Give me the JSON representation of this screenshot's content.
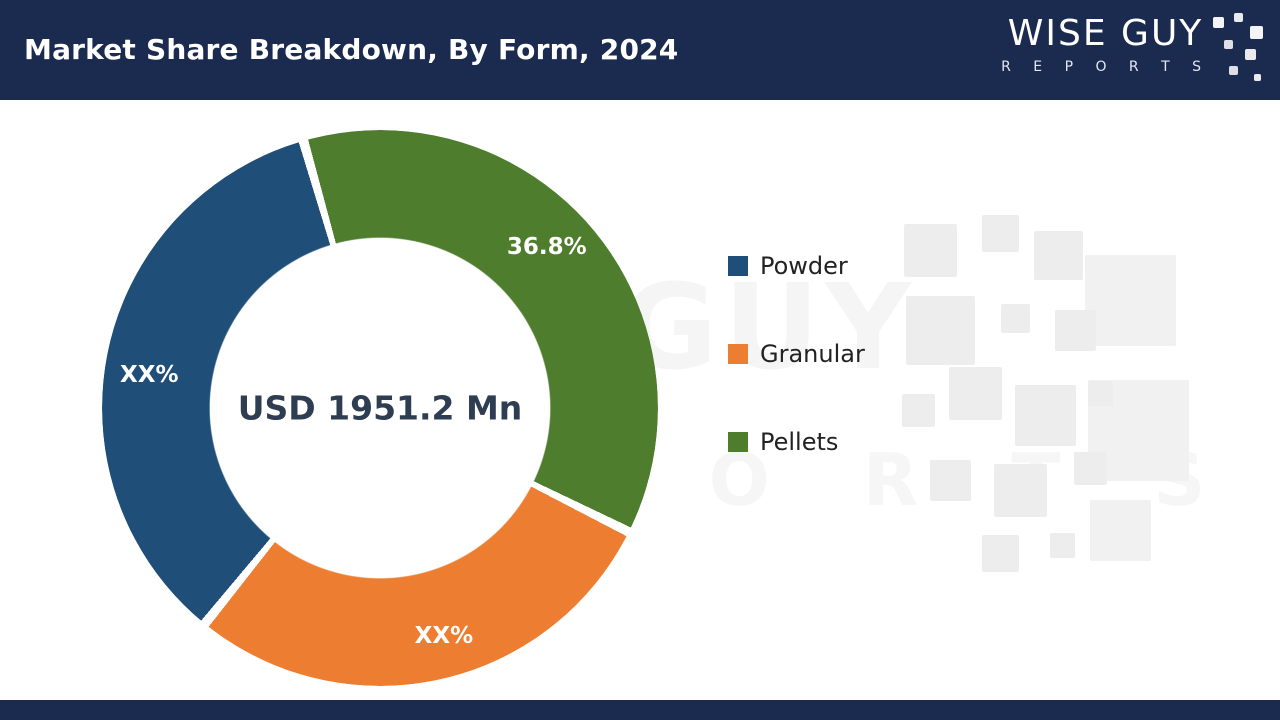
{
  "header": {
    "title": "Market Share Breakdown, By Form, 2024",
    "bg_color": "#1b2a4f",
    "logo": {
      "line1": "WISE GUY",
      "line2": "R E P O R T S"
    }
  },
  "watermark": {
    "line1": "WISE GUY",
    "line2": "R E P O R T S"
  },
  "chart_data": {
    "type": "pie",
    "subtype": "donut",
    "title": "Market Share Breakdown, By Form, 2024",
    "center_label": "USD 1951.2 Mn",
    "start_angle_deg": -15,
    "legend_position": "right",
    "segments": [
      {
        "name": "Pellets",
        "display": "36.8%",
        "value": 36.8,
        "color": "#4e7d2d"
      },
      {
        "name": "Granular",
        "display": "XX%",
        "value": 28.5,
        "color": "#ed7d31"
      },
      {
        "name": "Powder",
        "display": "XX%",
        "value": 34.7,
        "color": "#1f4e79"
      }
    ],
    "legend": [
      {
        "label": "Powder",
        "color": "#1f4e79"
      },
      {
        "label": "Granular",
        "color": "#ed7d31"
      },
      {
        "label": "Pellets",
        "color": "#4e7d2d"
      }
    ]
  }
}
